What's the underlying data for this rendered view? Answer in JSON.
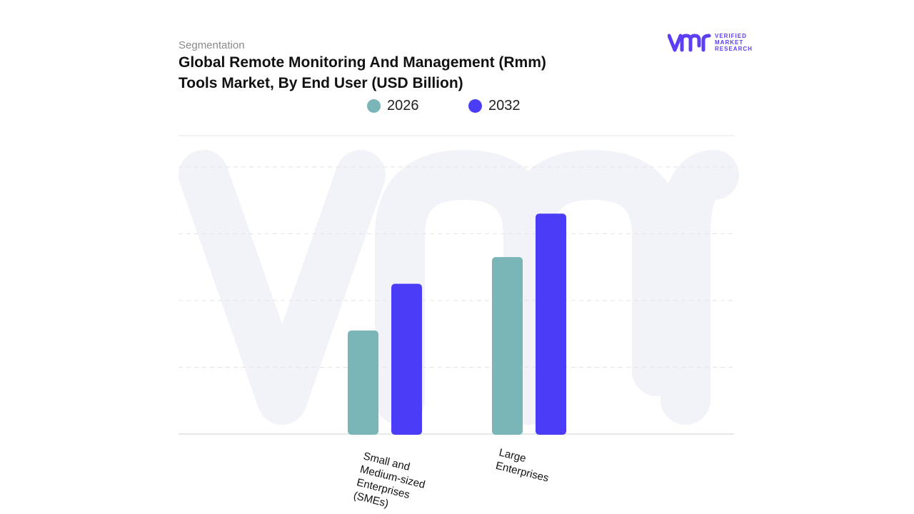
{
  "header": {
    "eyebrow": "Segmentation",
    "title_line1": "Global Remote Monitoring And Management (Rmm)",
    "title_line2": "Tools Market, By End User (USD Billion)"
  },
  "logo": {
    "line1": "VERIFIED",
    "line2": "MARKET",
    "line3": "RESEARCH",
    "color": "#5b3ff5"
  },
  "chart_data": {
    "type": "bar",
    "title": "Global Remote Monitoring And Management (Rmm) Tools Market, By End User (USD Billion)",
    "categories": [
      "Small and Medium-sized Enterprises (SMEs)",
      "Large Enterprises"
    ],
    "category_lines": [
      [
        "Small and",
        "Medium-sized",
        "Enterprises",
        "(SMEs)"
      ],
      [
        "Large",
        "Enterprises"
      ]
    ],
    "series": [
      {
        "name": "2026",
        "color": "#7ab5b8",
        "values": [
          1.55,
          2.65
        ]
      },
      {
        "name": "2032",
        "color": "#4b3cf7",
        "values": [
          2.25,
          3.3
        ]
      }
    ],
    "ylim": [
      0,
      4.5
    ],
    "grid": true,
    "legend_position": "top-center",
    "xlabel": "",
    "ylabel": ""
  }
}
